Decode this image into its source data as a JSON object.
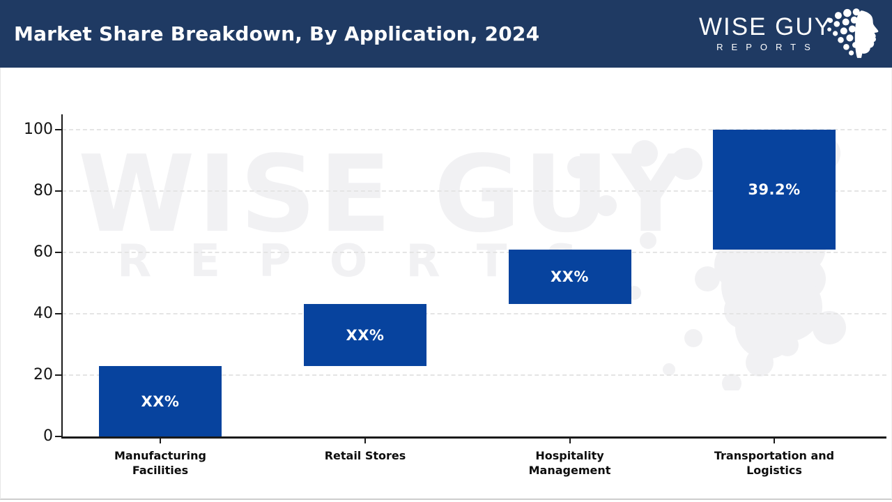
{
  "header": {
    "title": "Market Share Breakdown, By Application, 2024",
    "logo": {
      "name": "WISE GUY",
      "sub": "REPORTS"
    }
  },
  "watermark": {
    "line1": "WISE GUY",
    "line2": "REPORTS"
  },
  "icons": {
    "logo_face": "dotted-head-profile-icon"
  },
  "colors": {
    "header_bg": "#1f3a63",
    "bar": "#07439e",
    "axis": "#1a1a1a",
    "gridline": "#e4e4e4",
    "watermark": "#f1f1f3",
    "bar_label_text": "#ffffff",
    "tick_text": "#141414"
  },
  "chart_data": {
    "type": "bar",
    "subtype": "waterfall",
    "title": "Market Share Breakdown, By Application, 2024",
    "categories": [
      "Manufacturing Facilities",
      "Retail Stores",
      "Hospitality Management",
      "Transportation and Logistics"
    ],
    "segments": [
      {
        "category": "Manufacturing Facilities",
        "start": 0,
        "end": 22.9,
        "value": 22.9,
        "label": "XX%"
      },
      {
        "category": "Retail Stores",
        "start": 22.9,
        "end": 43.2,
        "value": 20.3,
        "label": "XX%"
      },
      {
        "category": "Hospitality Management",
        "start": 43.2,
        "end": 60.8,
        "value": 17.6,
        "label": "XX%"
      },
      {
        "category": "Transportation and Logistics",
        "start": 60.8,
        "end": 100,
        "value": 39.2,
        "label": "39.2%"
      }
    ],
    "yticks": [
      0,
      20,
      40,
      60,
      80,
      100
    ],
    "ylim": [
      0,
      105
    ],
    "xlabel": "",
    "ylabel": "",
    "grid": "horizontal-dashed",
    "legend": "none",
    "bar_color": "#07439e"
  }
}
